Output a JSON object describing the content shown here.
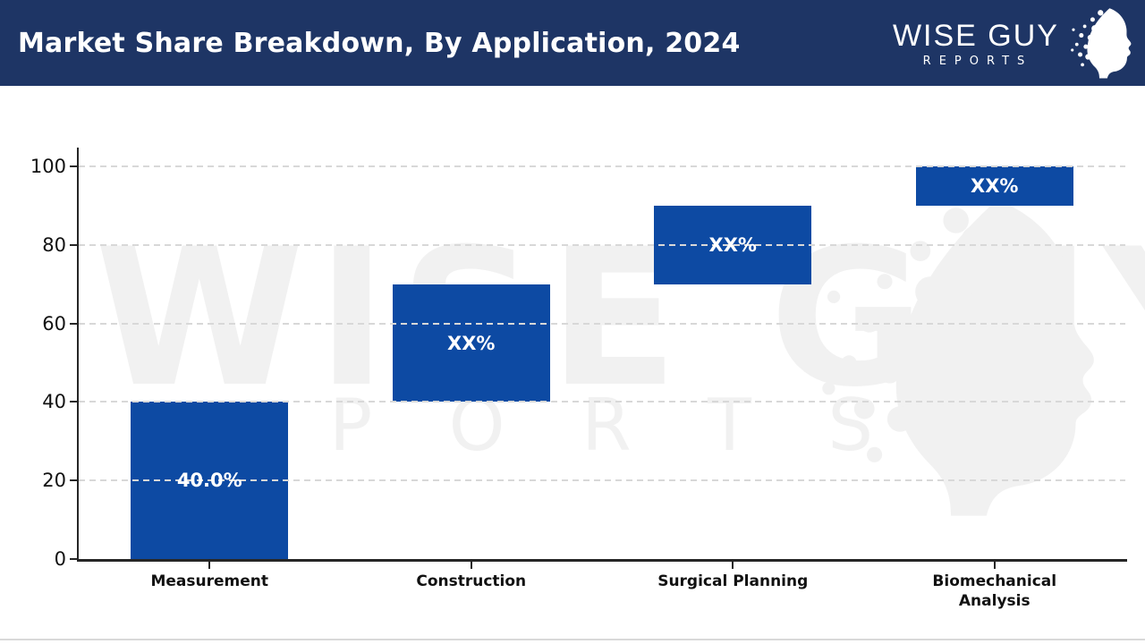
{
  "header": {
    "title": "Market Share Breakdown, By Application, 2024"
  },
  "logo": {
    "line1": "WISE GUY",
    "line2": "REPORTS"
  },
  "watermark": {
    "line1": "WISE GUY",
    "line2": "P O R T S"
  },
  "chart_data": {
    "type": "bar",
    "subtype": "waterfall",
    "title": "Market Share Breakdown, By Application, 2024",
    "categories": [
      "Measurement",
      "Construction",
      "Surgical Planning",
      "Biomechanical Analysis"
    ],
    "segments": [
      {
        "category": "Measurement",
        "start": 0,
        "end": 40,
        "value": 40,
        "label": "40.0%"
      },
      {
        "category": "Construction",
        "start": 40,
        "end": 70,
        "value": 30,
        "label": "XX%"
      },
      {
        "category": "Surgical Planning",
        "start": 70,
        "end": 90,
        "value": 20,
        "label": "XX%"
      },
      {
        "category": "Biomechanical Analysis",
        "start": 90,
        "end": 100,
        "value": 10,
        "label": "XX%"
      }
    ],
    "yticks": [
      0,
      20,
      40,
      60,
      80,
      100
    ],
    "ylim": [
      0,
      105
    ],
    "xlabel": "",
    "ylabel": "",
    "grid": "horizontal-dashed",
    "legend": "none"
  },
  "colors": {
    "header_bg": "#1e3565",
    "bar": "#0d4aa3",
    "grid": "#d8d8d8",
    "axis": "#262626",
    "wm": "#f1f1f1",
    "hairline": "#d9d9d9"
  }
}
